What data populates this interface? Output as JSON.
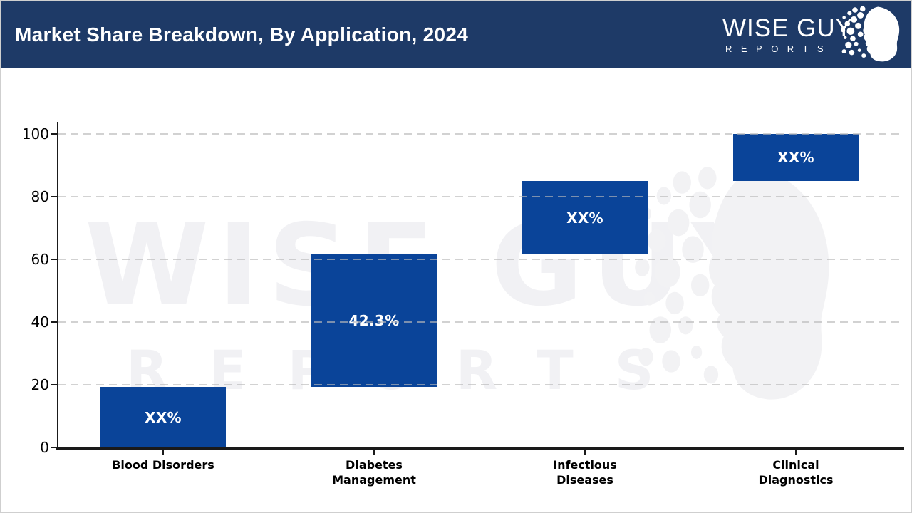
{
  "header": {
    "title": "Market Share Breakdown, By Application, 2024",
    "logo": {
      "line1": "WISE GUY",
      "line2": "REPORTS"
    }
  },
  "watermark": {
    "line1": "WISE GUY",
    "line2": "REPORTS"
  },
  "chart_data": {
    "type": "bar",
    "variant": "waterfall-floating-bars",
    "title": "Market Share Breakdown, By Application, 2024",
    "categories": [
      "Blood Disorders",
      "Diabetes Management",
      "Infectious Diseases",
      "Clinical Diagnostics"
    ],
    "category_lines": [
      [
        "Blood Disorders"
      ],
      [
        "Diabetes",
        "Management"
      ],
      [
        "Infectious",
        "Diseases"
      ],
      [
        "Clinical",
        "Diagnostics"
      ]
    ],
    "segments": [
      {
        "category": "Blood Disorders",
        "start": 0,
        "end": 19.3,
        "height": 19.3,
        "label": "XX%"
      },
      {
        "category": "Diabetes Management",
        "start": 19.3,
        "end": 61.6,
        "height": 42.3,
        "label": "42.3%"
      },
      {
        "category": "Infectious Diseases",
        "start": 61.6,
        "end": 84.9,
        "height": 23.3,
        "label": "XX%"
      },
      {
        "category": "Clinical Diagnostics",
        "start": 84.9,
        "end": 100,
        "height": 15.1,
        "label": "XX%"
      }
    ],
    "ylim": [
      0,
      100
    ],
    "yticks": [
      0,
      20,
      40,
      60,
      80,
      100
    ],
    "xlabel": "",
    "ylabel": "",
    "grid": "horizontal-dashed",
    "legend": null
  },
  "colors": {
    "header_bg": "#1e3a67",
    "bar": "#0a4499",
    "bar_label": "#ffffff",
    "grid": "#d2d2d2",
    "axis": "#1a1a1a",
    "watermark": "#f1f1f4",
    "page_bg": "#ffffff"
  }
}
